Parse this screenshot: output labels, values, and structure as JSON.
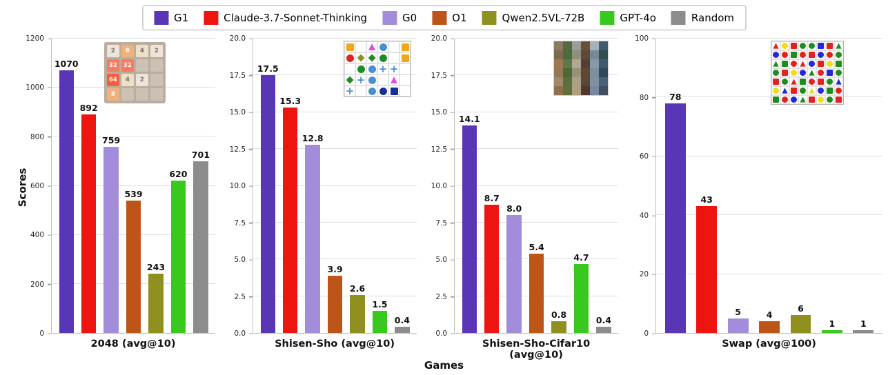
{
  "figure": {
    "ylabel": "Scores",
    "xlabel": "Games"
  },
  "legend": {
    "items": [
      {
        "label": "G1",
        "color": "#5936b6"
      },
      {
        "label": "Claude-3.7-Sonnet-Thinking",
        "color": "#ee1410"
      },
      {
        "label": "G0",
        "color": "#a38cd9"
      },
      {
        "label": "O1",
        "color": "#bd5418"
      },
      {
        "label": "Qwen2.5VL-72B",
        "color": "#8f901f"
      },
      {
        "label": "GPT-4o",
        "color": "#38c81e"
      },
      {
        "label": "Random",
        "color": "#8c8c8c"
      }
    ]
  },
  "chart_data": {
    "type": "bar",
    "title": "",
    "xlabel": "Games",
    "ylabel": "Scores",
    "legend_position": "top-center",
    "grid": true,
    "series": [
      "G1",
      "Claude-3.7-Sonnet-Thinking",
      "G0",
      "O1",
      "Qwen2.5VL-72B",
      "GPT-4o",
      "Random"
    ],
    "panels": [
      {
        "title": "2048 (avg@10)",
        "ylim": [
          0,
          1200
        ],
        "yticks": [
          "0",
          "200",
          "400",
          "600",
          "800",
          "1000",
          "1200"
        ],
        "values": [
          1070,
          892,
          759,
          539,
          243,
          620,
          701
        ],
        "labels": [
          "1070",
          "892",
          "759",
          "539",
          "243",
          "620",
          "701"
        ]
      },
      {
        "title": "Shisen-Sho (avg@10)",
        "ylim": [
          0,
          20
        ],
        "yticks": [
          "0.0",
          "2.5",
          "5.0",
          "7.5",
          "10.0",
          "12.5",
          "15.0",
          "17.5",
          "20.0"
        ],
        "values": [
          17.5,
          15.3,
          12.8,
          3.9,
          2.6,
          1.5,
          0.4
        ],
        "labels": [
          "17.5",
          "15.3",
          "12.8",
          "3.9",
          "2.6",
          "1.5",
          "0.4"
        ]
      },
      {
        "title": "Shisen-Sho-Cifar10 (avg@10)",
        "ylim": [
          0,
          20
        ],
        "yticks": [
          "0.0",
          "2.5",
          "5.0",
          "7.5",
          "10.0",
          "12.5",
          "15.0",
          "17.5",
          "20.0"
        ],
        "values": [
          14.1,
          8.7,
          8.0,
          5.4,
          0.8,
          4.7,
          0.4
        ],
        "labels": [
          "14.1",
          "8.7",
          "8.0",
          "5.4",
          "0.8",
          "4.7",
          "0.4"
        ]
      },
      {
        "title": "Swap (avg@100)",
        "ylim": [
          0,
          100
        ],
        "yticks": [
          "0",
          "20",
          "40",
          "60",
          "80",
          "100"
        ],
        "values": [
          78,
          43,
          5,
          4,
          6,
          1,
          1
        ],
        "labels": [
          "78",
          "43",
          "5",
          "4",
          "6",
          "1",
          "1"
        ]
      }
    ]
  },
  "insets": {
    "shape_colors": {
      "orange": "#f2a71b",
      "red": "#e0231e",
      "green": "#1f8c1f",
      "magenta": "#e24fd6",
      "steel": "#4a8fd2",
      "navy": "#1a2f96",
      "olive": "#8f8f1e",
      "yellow": "#f0dd18",
      "blue": "#2428d8"
    },
    "board_2048": {
      "grid": [
        [
          "2",
          "8",
          "4",
          "2"
        ],
        [
          "32",
          "32",
          "",
          ""
        ],
        [
          "64",
          "4",
          "2",
          ""
        ],
        [
          "8",
          "",
          "",
          ""
        ]
      ]
    },
    "shisen": {
      "grid": [
        [
          "sq:orange",
          "",
          "tri:magenta",
          "ci:steel",
          "",
          "sq:orange"
        ],
        [
          "ci:red",
          "di:olive",
          "di:green",
          "ci:green",
          "",
          "sq:orange"
        ],
        [
          "",
          "ci:green",
          "ci:steel",
          "pl:steel",
          "pl:steel",
          ""
        ],
        [
          "di:green",
          "pl:steel",
          "ci:steel",
          "",
          "tri:magenta",
          ""
        ],
        [
          "pl:steel",
          "",
          "ci:steel",
          "ci:navy",
          "sq:navy",
          ""
        ]
      ]
    },
    "cifar10": {
      "colors": [
        "#8a7a5e",
        "#55683f",
        "#9c9c9c",
        "#6b4f35",
        "#a8b0b8",
        "#3f5a71",
        "#7d6b4f",
        "#4b6b3a",
        "#8f8f7a",
        "#5e4a38",
        "#77889a",
        "#2f4f4f",
        "#a07850",
        "#607848",
        "#b0a890",
        "#504038",
        "#8898a8",
        "#405870",
        "#907858",
        "#506830",
        "#989078",
        "#604830",
        "#7890a0",
        "#304858",
        "#a08868",
        "#587040",
        "#a8a088",
        "#584838",
        "#8090a0",
        "#486078",
        "#907050",
        "#607038",
        "#b0a080",
        "#503830",
        "#7888a0",
        "#405060"
      ]
    },
    "swap": {
      "grid": [
        [
          "t:red",
          "c:yellow",
          "s:red",
          "c:green",
          "c:green",
          "s:blue",
          "s:red",
          "t:green"
        ],
        [
          "c:blue",
          "c:red",
          "s:green",
          "c:red",
          "s:red",
          "c:blue",
          "c:red",
          "c:green"
        ],
        [
          "t:green",
          "s:green",
          "c:red",
          "t:red",
          "c:blue",
          "s:red",
          "c:yellow",
          "s:green"
        ],
        [
          "c:green",
          "s:red",
          "c:yellow",
          "c:blue",
          "t:green",
          "c:red",
          "s:blue",
          "c:green"
        ],
        [
          "s:red",
          "c:green",
          "t:red",
          "s:green",
          "c:red",
          "s:red",
          "c:green",
          "t:blue"
        ],
        [
          "c:yellow",
          "t:blue",
          "s:red",
          "c:green",
          "t:yellow",
          "c:blue",
          "s:green",
          "c:red"
        ],
        [
          "s:green",
          "c:red",
          "c:blue",
          "t:green",
          "s:red",
          "c:yellow",
          "c:green",
          "s:red"
        ]
      ]
    }
  }
}
